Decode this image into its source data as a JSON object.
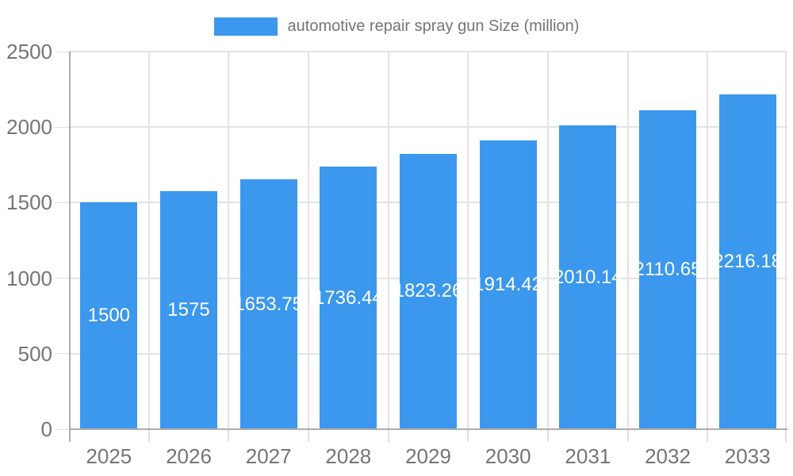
{
  "legend": {
    "label": "automotive repair spray gun Size (million)",
    "swatch_color": "#3B98EC"
  },
  "chart_data": {
    "type": "bar",
    "title": "",
    "series_name": "automotive repair spray gun Size (million)",
    "categories": [
      "2025",
      "2026",
      "2027",
      "2028",
      "2029",
      "2030",
      "2031",
      "2032",
      "2033"
    ],
    "values": [
      1500,
      1575,
      1653.75,
      1736.44,
      1823.26,
      1914.42,
      2010.14,
      2110.65,
      2216.18
    ],
    "value_labels": [
      "1500",
      "1575",
      "1653.75",
      "1736.44",
      "1823.26",
      "1914.42",
      "2010.14",
      "2110.65",
      "2216.18"
    ],
    "xlabel": "",
    "ylabel": "",
    "ylim": [
      0,
      2500
    ],
    "yticks": [
      0,
      500,
      1000,
      1500,
      2000,
      2500
    ],
    "ytick_labels": [
      "0",
      "500",
      "1000",
      "1500",
      "2000",
      "2500"
    ],
    "grid": true,
    "legend_position": "top",
    "colors": {
      "bar": "#3B98EC",
      "value_label": "#FFFFFF",
      "axis_text": "#757575",
      "gridline": "#E3E3E3",
      "tick": "#E0E0E0",
      "axis_line": "#ADADAD",
      "background": "#FFFFFF"
    }
  }
}
